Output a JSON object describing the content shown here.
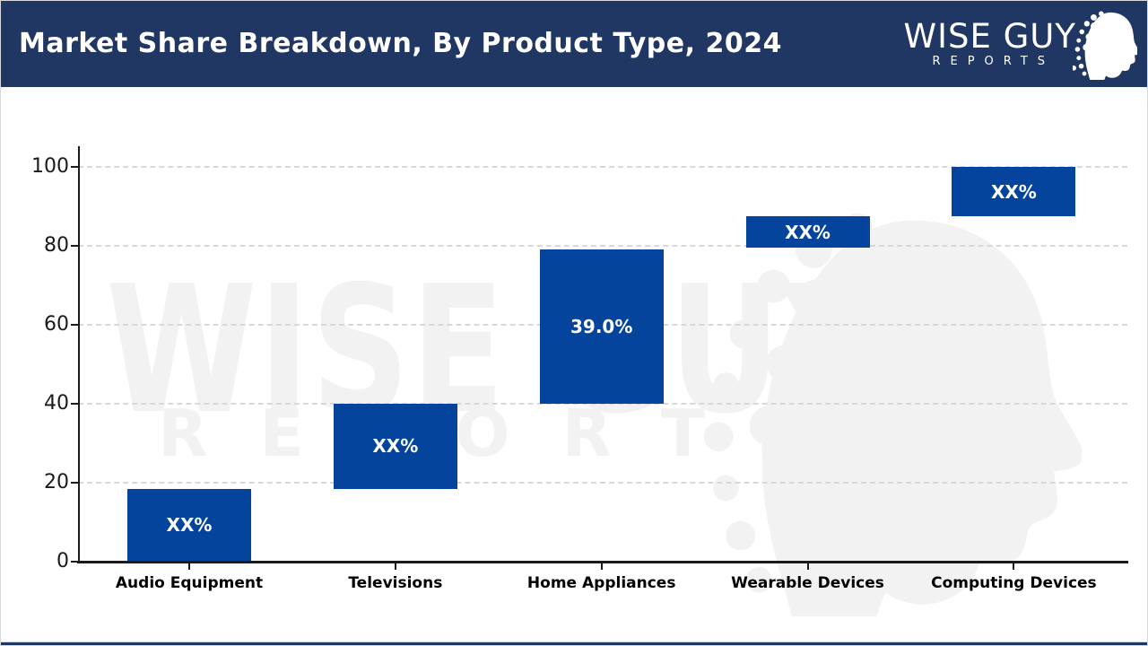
{
  "header": {
    "title": "Market Share Breakdown, By Product Type, 2024",
    "logo": {
      "line1": "WISE GUY",
      "line2": "REPORTS"
    }
  },
  "watermark": {
    "line1": "WISE GUY",
    "line2": "REPORTS"
  },
  "colors": {
    "header_bg": "#213763",
    "bar_blue": "#04449c",
    "grid": "#d8d8d8",
    "axis": "#1a1a1a",
    "watermark": "#f2f2f2",
    "title_text": "#ffffff"
  },
  "chart_data": {
    "type": "bar",
    "subtype": "waterfall",
    "title": "Market Share Breakdown, By Product Type, 2024",
    "categories": [
      "Audio Equipment",
      "Televisions",
      "Home Appliances",
      "Wearable Devices",
      "Computing Devices"
    ],
    "segments": [
      {
        "category": "Audio Equipment",
        "start": 0,
        "end": 18.5,
        "label": "XX%"
      },
      {
        "category": "Televisions",
        "start": 18.5,
        "end": 40,
        "label": "XX%"
      },
      {
        "category": "Home Appliances",
        "start": 40,
        "end": 79,
        "label": "39.0%",
        "value": 39.0
      },
      {
        "category": "Wearable Devices",
        "start": 79.5,
        "end": 87.5,
        "label": "XX%"
      },
      {
        "category": "Computing Devices",
        "start": 87.5,
        "end": 100,
        "label": "XX%"
      }
    ],
    "yticks": [
      0,
      20,
      40,
      60,
      80,
      100
    ],
    "ylim": [
      0,
      105
    ],
    "xlabel": "",
    "ylabel": "",
    "grid": "dashed-horizontal",
    "legend": "none",
    "bar_color": "#04449c",
    "label_color": "#ffffff"
  }
}
